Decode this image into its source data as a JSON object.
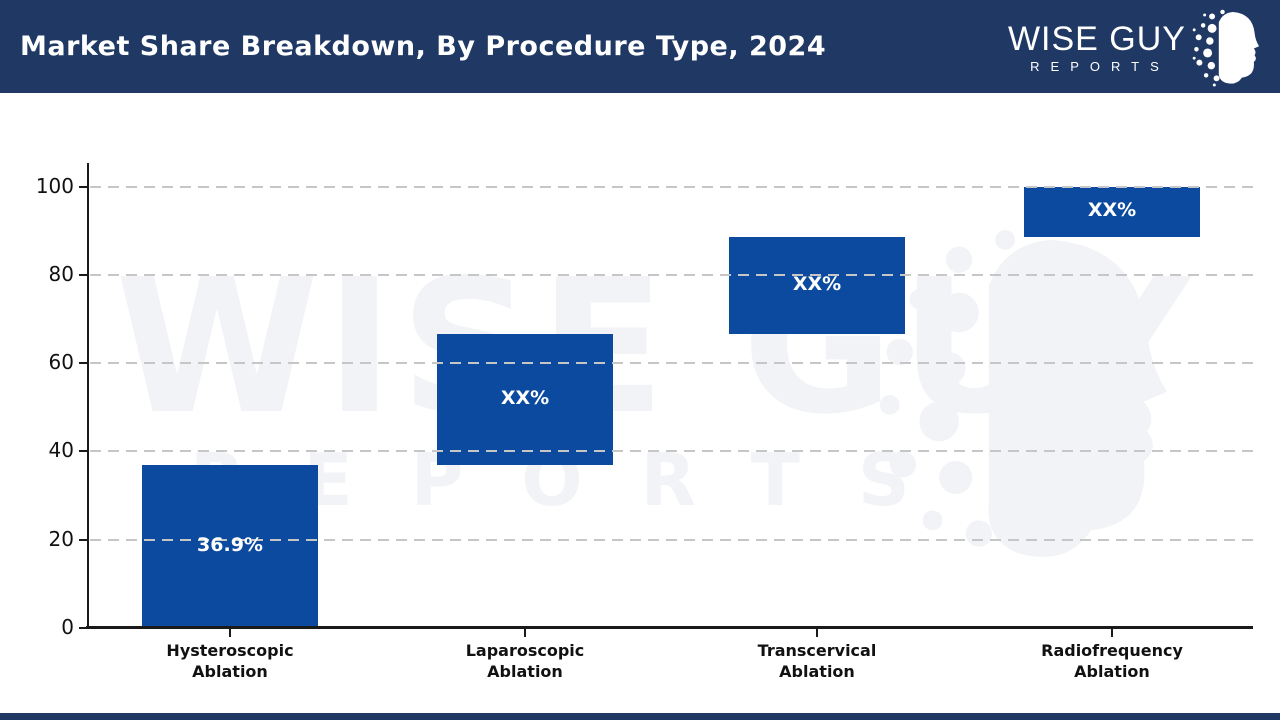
{
  "header": {
    "title": "Market Share Breakdown, By Procedure Type, 2024",
    "logo": {
      "line1": "WISE GUY",
      "line2": "REPORTS"
    }
  },
  "watermark": {
    "line1": "WISE GUY",
    "line2": "REPORTS"
  },
  "colors": {
    "header_bg": "#1f3864",
    "footer_bg": "#1f3864",
    "bar": "#0b4a9f",
    "grid_line": "#c6c6c6",
    "axis": "#1a1a1a",
    "bar_label": "#ffffff",
    "watermark": "#f2f3f6"
  },
  "chart_data": {
    "type": "bar",
    "subtype": "waterfall",
    "title": "Market Share Breakdown, By Procedure Type, 2024",
    "categories": [
      [
        "Hysteroscopic",
        "Ablation"
      ],
      [
        "Laparoscopic",
        "Ablation"
      ],
      [
        "Transcervical",
        "Ablation"
      ],
      [
        "Radiofrequency",
        "Ablation"
      ]
    ],
    "segments": [
      {
        "start": 0,
        "end": 36.9,
        "label": "36.9%"
      },
      {
        "start": 36.9,
        "end": 66.6,
        "label": "XX%"
      },
      {
        "start": 66.6,
        "end": 88.5,
        "label": "XX%"
      },
      {
        "start": 88.5,
        "end": 100,
        "label": "XX%"
      }
    ],
    "xlabel": "",
    "ylabel": "",
    "ylim": [
      0,
      100
    ],
    "yticks": [
      0,
      20,
      40,
      60,
      80,
      100
    ],
    "grid": "horizontal dashed, drawn over bars",
    "legend": "none"
  }
}
